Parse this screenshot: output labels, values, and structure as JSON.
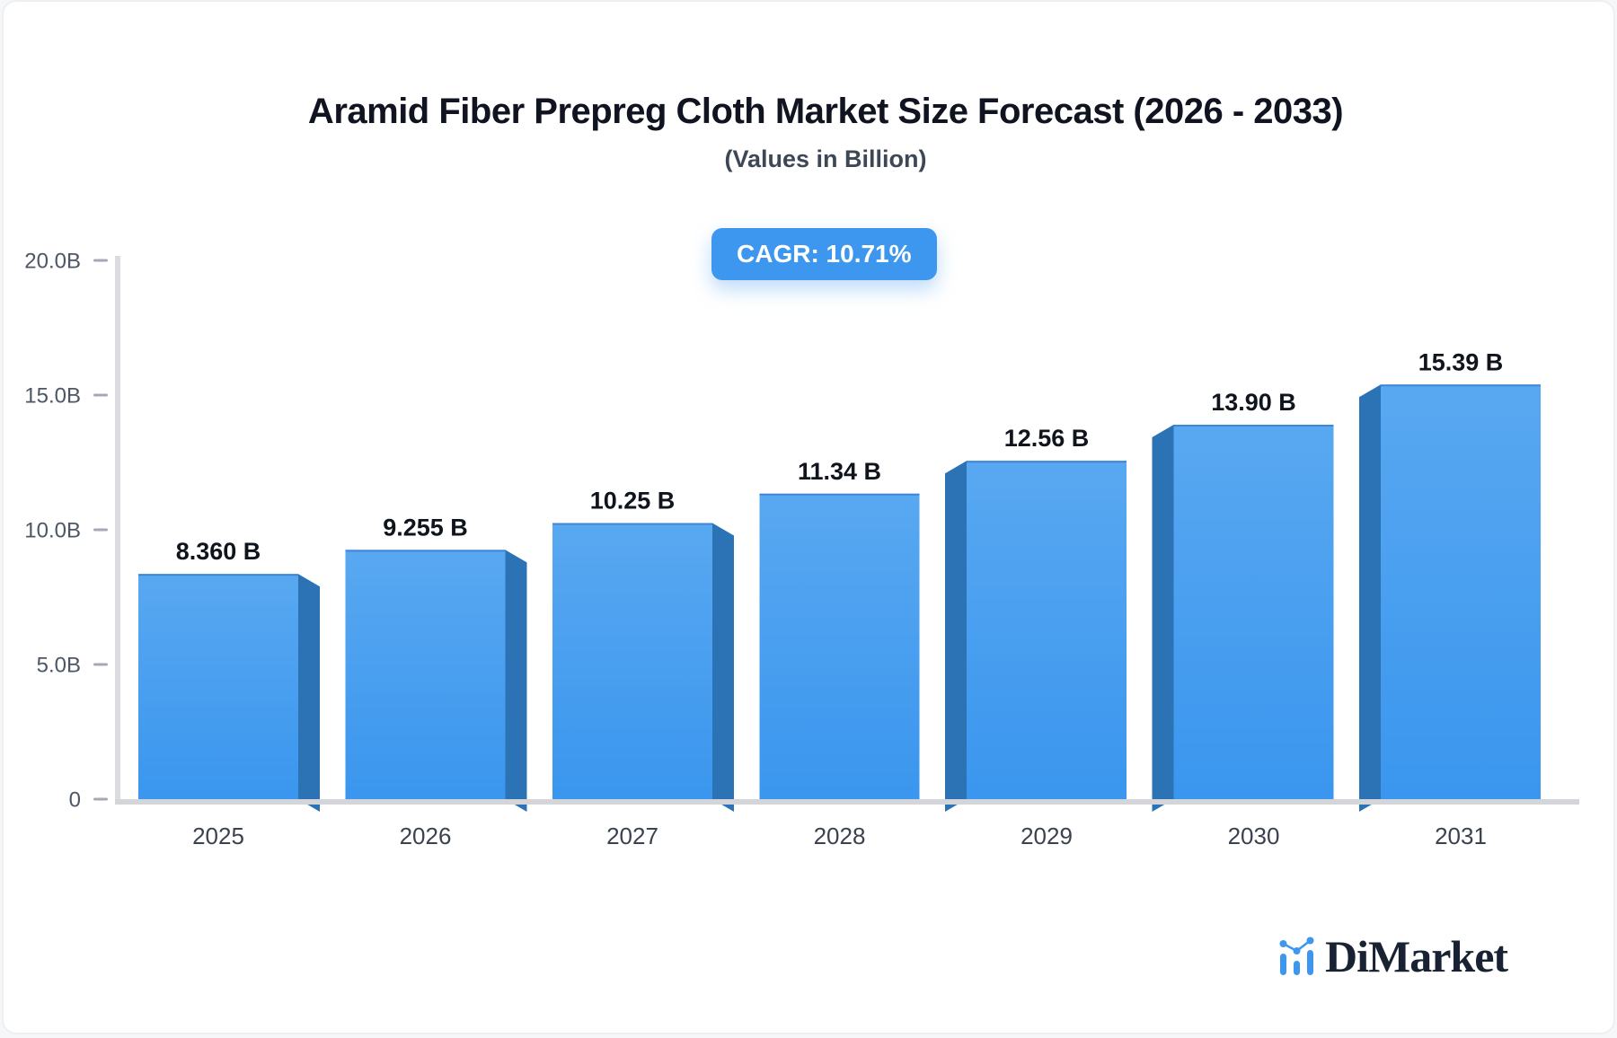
{
  "header": {
    "title": "Aramid Fiber Prepreg Cloth Market Size Forecast (2026 - 2033)",
    "subtitle": "(Values in Billion)",
    "badge_label": "CAGR: 10.71%",
    "badge_color": "#3e97ee"
  },
  "chart_data": {
    "type": "bar",
    "title": "Aramid Fiber Prepreg Cloth Market Size Forecast (2026 - 2033)",
    "subtitle": "(Values in Billion)",
    "cagr": "10.71%",
    "categories": [
      "2025",
      "2026",
      "2027",
      "2028",
      "2029",
      "2030",
      "2031"
    ],
    "values": [
      8.36,
      9.255,
      10.25,
      11.34,
      12.56,
      13.9,
      15.39
    ],
    "value_labels": [
      "8.360 B",
      "9.255 B",
      "10.25 B",
      "11.34 B",
      "12.56 B",
      "13.90 B",
      "15.39 B"
    ],
    "xlabel": "",
    "ylabel": "",
    "ylim": [
      0,
      20
    ],
    "yticks": [
      {
        "value": 20,
        "label": "20.0B"
      },
      {
        "value": 15,
        "label": "15.0B"
      },
      {
        "value": 10,
        "label": "10.0B"
      },
      {
        "value": 5,
        "label": "5.0B"
      },
      {
        "value": 0,
        "label": "0"
      }
    ],
    "grid": false,
    "legend": "none",
    "bar_style_3d": true,
    "side_direction": [
      "right",
      "right",
      "right",
      "none",
      "left",
      "left",
      "left"
    ],
    "colors": {
      "bar_face_top": "#59a8f1",
      "bar_face_bottom": "#3a96ee",
      "bar_side": "#2b73b4",
      "bar_top_edge": "#3e86d6",
      "axis_line": "#dadce0",
      "baseline": "#d3d5d9",
      "tick_mark": "#a3aab4",
      "tick_label": "#4d5665",
      "category_label": "#3a4250",
      "value_label": "#10151d"
    }
  },
  "logo": {
    "text": "DiMarket",
    "icon": "bar-chart-logo-icon",
    "text_color": "#182232",
    "icon_color": "#3e97ef"
  }
}
